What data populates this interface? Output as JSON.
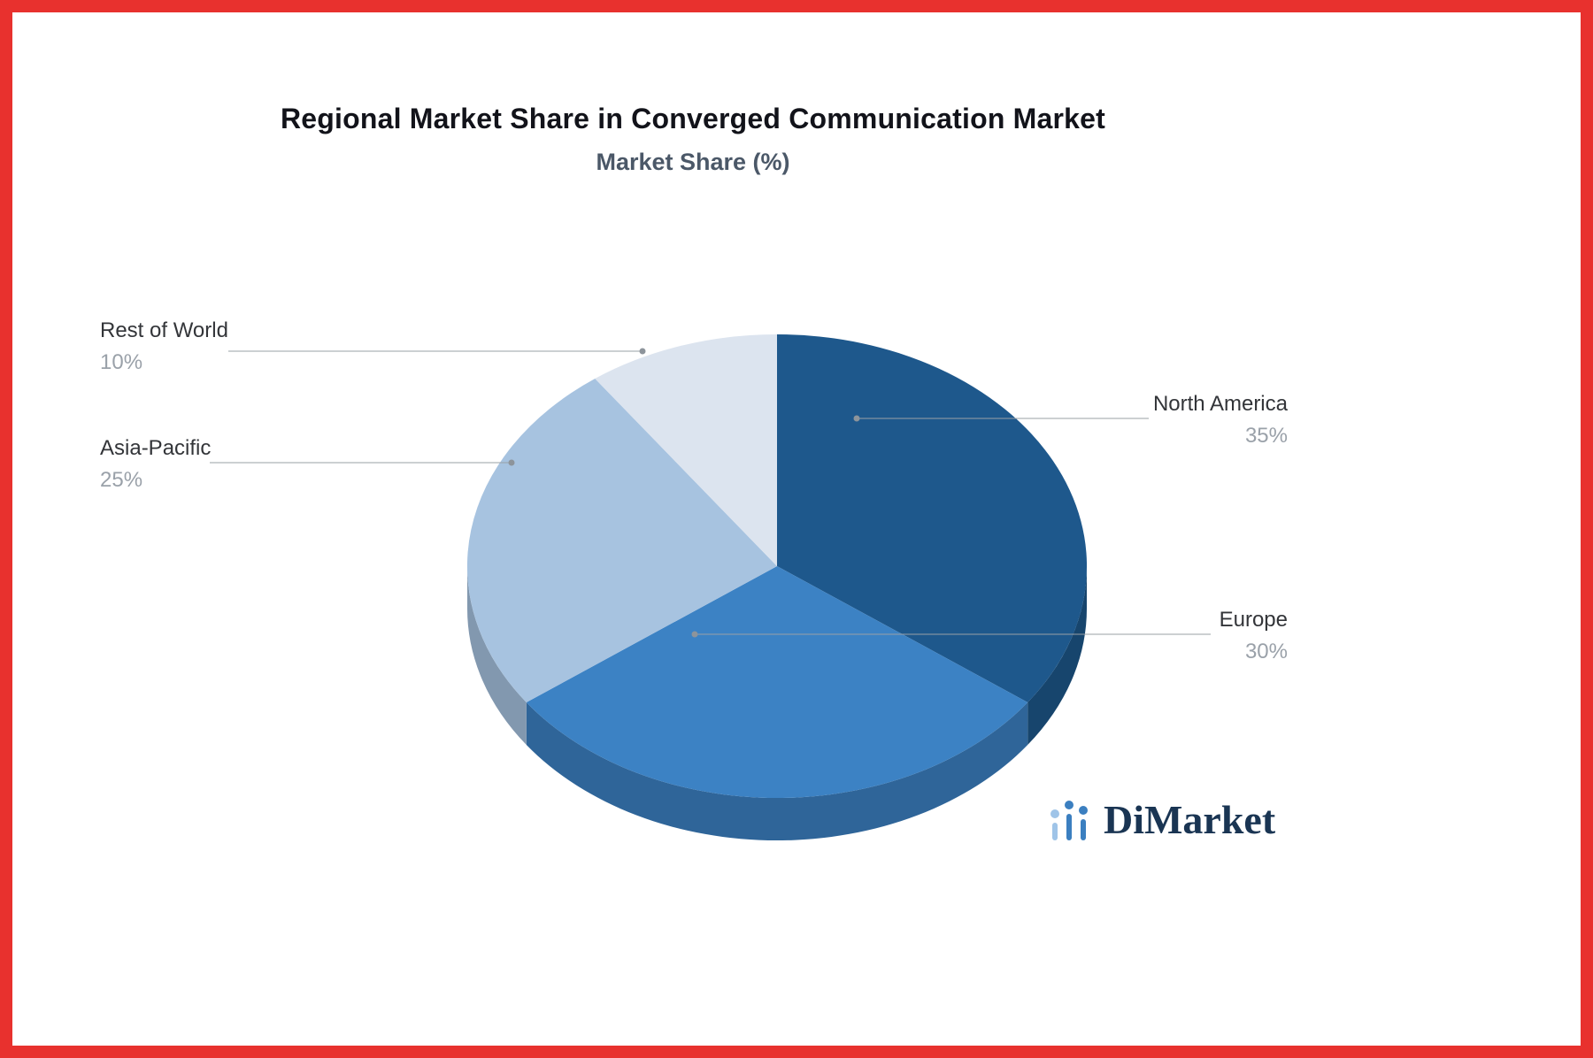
{
  "frame": {
    "border_color": "#e8312e"
  },
  "chart_data": {
    "type": "pie",
    "style": "3d",
    "title": "Regional Market Share in Converged Communication Market",
    "subtitle": "Market Share (%)",
    "unit": "%",
    "categories": [
      "North America",
      "Europe",
      "Asia-Pacific",
      "Rest of World"
    ],
    "values": [
      35,
      30,
      25,
      10
    ],
    "pct_labels": [
      "35%",
      "30%",
      "25%",
      "10%"
    ],
    "colors": [
      "#1e588c",
      "#3c82c4",
      "#a7c3e0",
      "#dce4ef"
    ],
    "start_angle": "top",
    "direction": "clockwise",
    "legend_position": "none",
    "label_style": "callouts-with-leader-lines"
  },
  "branding": {
    "logo_text": "DiMarket",
    "logo_icon": "mini-bar-chart-icon",
    "logo_text_color": "#1a3553",
    "logo_icon_color": "#3b7fc0"
  }
}
